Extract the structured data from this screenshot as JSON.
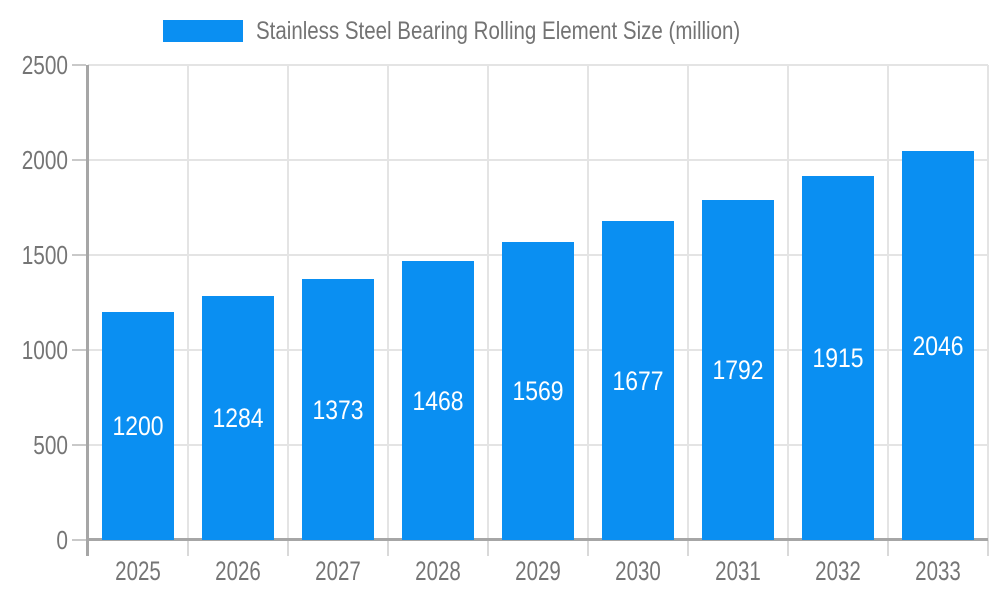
{
  "legend": {
    "label": "Stainless Steel Bearing Rolling Element Size (million)"
  },
  "chart_data": {
    "type": "bar",
    "title": "Stainless Steel Bearing Rolling Element Size (million)",
    "categories": [
      "2025",
      "2026",
      "2027",
      "2028",
      "2029",
      "2030",
      "2031",
      "2032",
      "2033"
    ],
    "values": [
      1200,
      1284,
      1373,
      1468,
      1569,
      1677,
      1792,
      1915,
      2046
    ],
    "xlabel": "",
    "ylabel": "",
    "ylim": [
      0,
      2500
    ],
    "yticks": [
      0,
      500,
      1000,
      1500,
      2000,
      2500
    ],
    "grid": true,
    "legend_position": "top",
    "value_labels": "inside-center",
    "colors": {
      "bar": "#0a8ff2",
      "axis_text": "#757575",
      "legend_text": "#737373",
      "grid_line": "#e4e4e4",
      "axis_line": "#a6a6a6",
      "tick_mark": "#c9c9c9",
      "value_label": "#ffffff",
      "background": "#ffffff"
    }
  }
}
